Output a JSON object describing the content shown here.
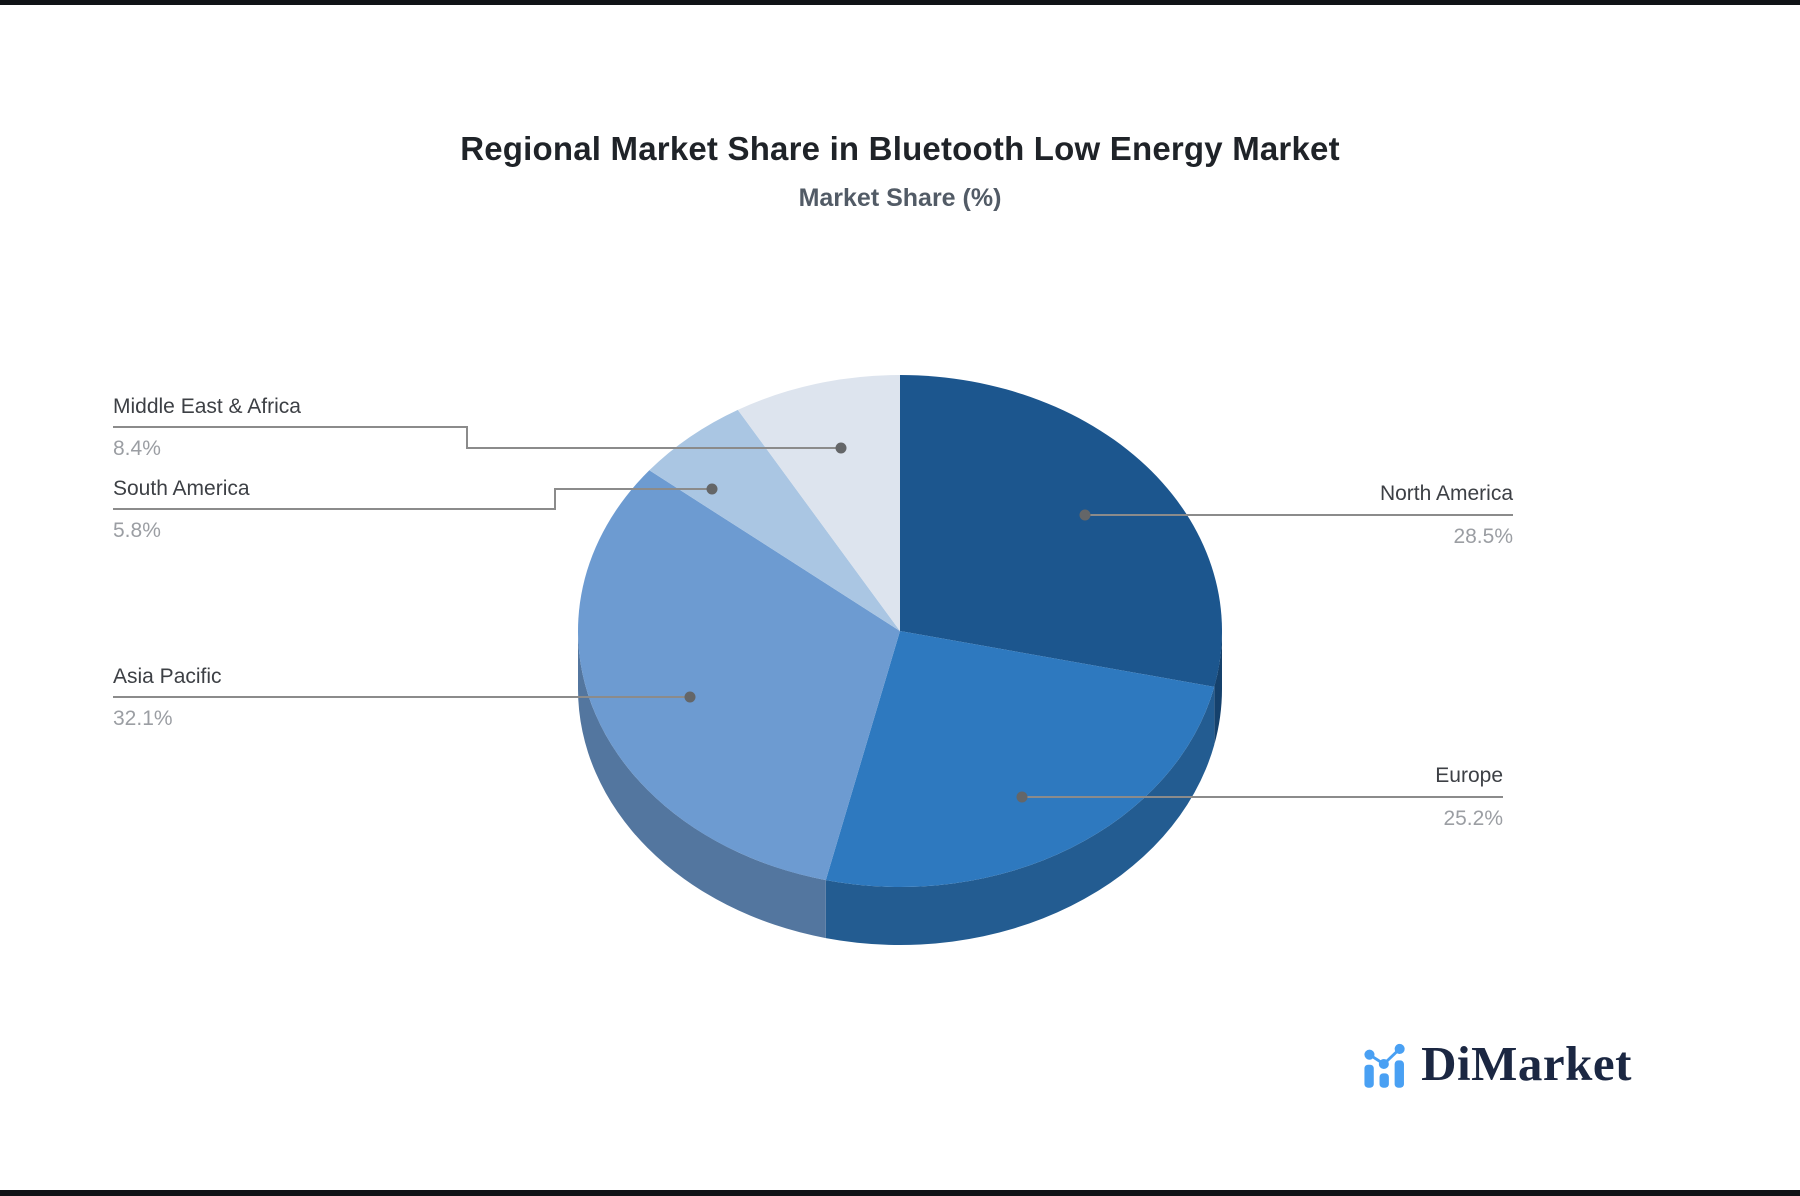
{
  "title": "Regional Market Share in Bluetooth Low Energy Market",
  "subtitle": "Market Share (%)",
  "chart_data": {
    "type": "pie",
    "style": "3d-extruded",
    "unit": "%",
    "title": "Regional Market Share in Bluetooth Low Energy Market",
    "subtitle": "Market Share (%)",
    "start_angle": "12-o-clock",
    "direction": "clockwise",
    "legend_position": "callout-labels",
    "slices": [
      {
        "label": "North America",
        "value": 28.5,
        "color": "#1c568e"
      },
      {
        "label": "Europe",
        "value": 25.2,
        "color": "#2e79bf"
      },
      {
        "label": "Asia Pacific",
        "value": 32.1,
        "color": "#6d9bd1"
      },
      {
        "label": "South America",
        "value": 5.8,
        "color": "#aac6e3"
      },
      {
        "label": "Middle East & Africa",
        "value": 8.4,
        "color": "#dde4ee"
      }
    ]
  },
  "callouts": [
    {
      "name": "North America",
      "value": "28.5%"
    },
    {
      "name": "Europe",
      "value": "25.2%"
    },
    {
      "name": "Asia Pacific",
      "value": "32.1%"
    },
    {
      "name": "South America",
      "value": "5.8%"
    },
    {
      "name": "Middle East & Africa",
      "value": "8.4%"
    }
  ],
  "colors": {
    "leader_line": "#8b8b8b",
    "leader_dot": "#646668",
    "label_name_text": "#3d4045",
    "label_value_text": "#9b9ea3",
    "logo_blue": "#49a0f3",
    "brand_navy": "#1b2742"
  },
  "watermark": {
    "brand": "DiMarket"
  }
}
